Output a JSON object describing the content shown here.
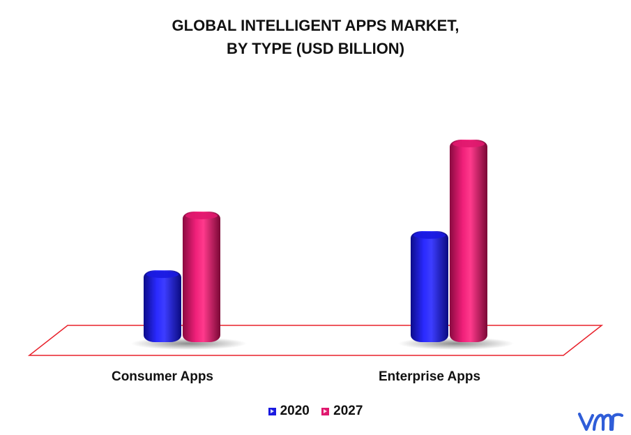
{
  "title_lines": [
    "GLOBAL INTELLIGENT APPS MARKET,",
    "BY TYPE (USD BILLION)"
  ],
  "chart_data": {
    "type": "bar",
    "title": "GLOBAL INTELLIGENT APPS MARKET, BY TYPE (USD BILLION)",
    "categories": [
      "Consumer Apps",
      "Enterprise Apps"
    ],
    "series": [
      {
        "name": "2020",
        "values": [
          1.1,
          1.7
        ],
        "color": "#1a1ae0"
      },
      {
        "name": "2027",
        "values": [
          2.0,
          3.1
        ],
        "color": "#e0186e"
      }
    ],
    "xlabel": "",
    "ylabel": "",
    "ylim": [
      0,
      3.4
    ],
    "grid": false,
    "legend_position": "bottom-center"
  },
  "floor_color": "#e8202a",
  "logo_icon": "vmr-logo-icon",
  "logo_color": "#2f5dd8"
}
